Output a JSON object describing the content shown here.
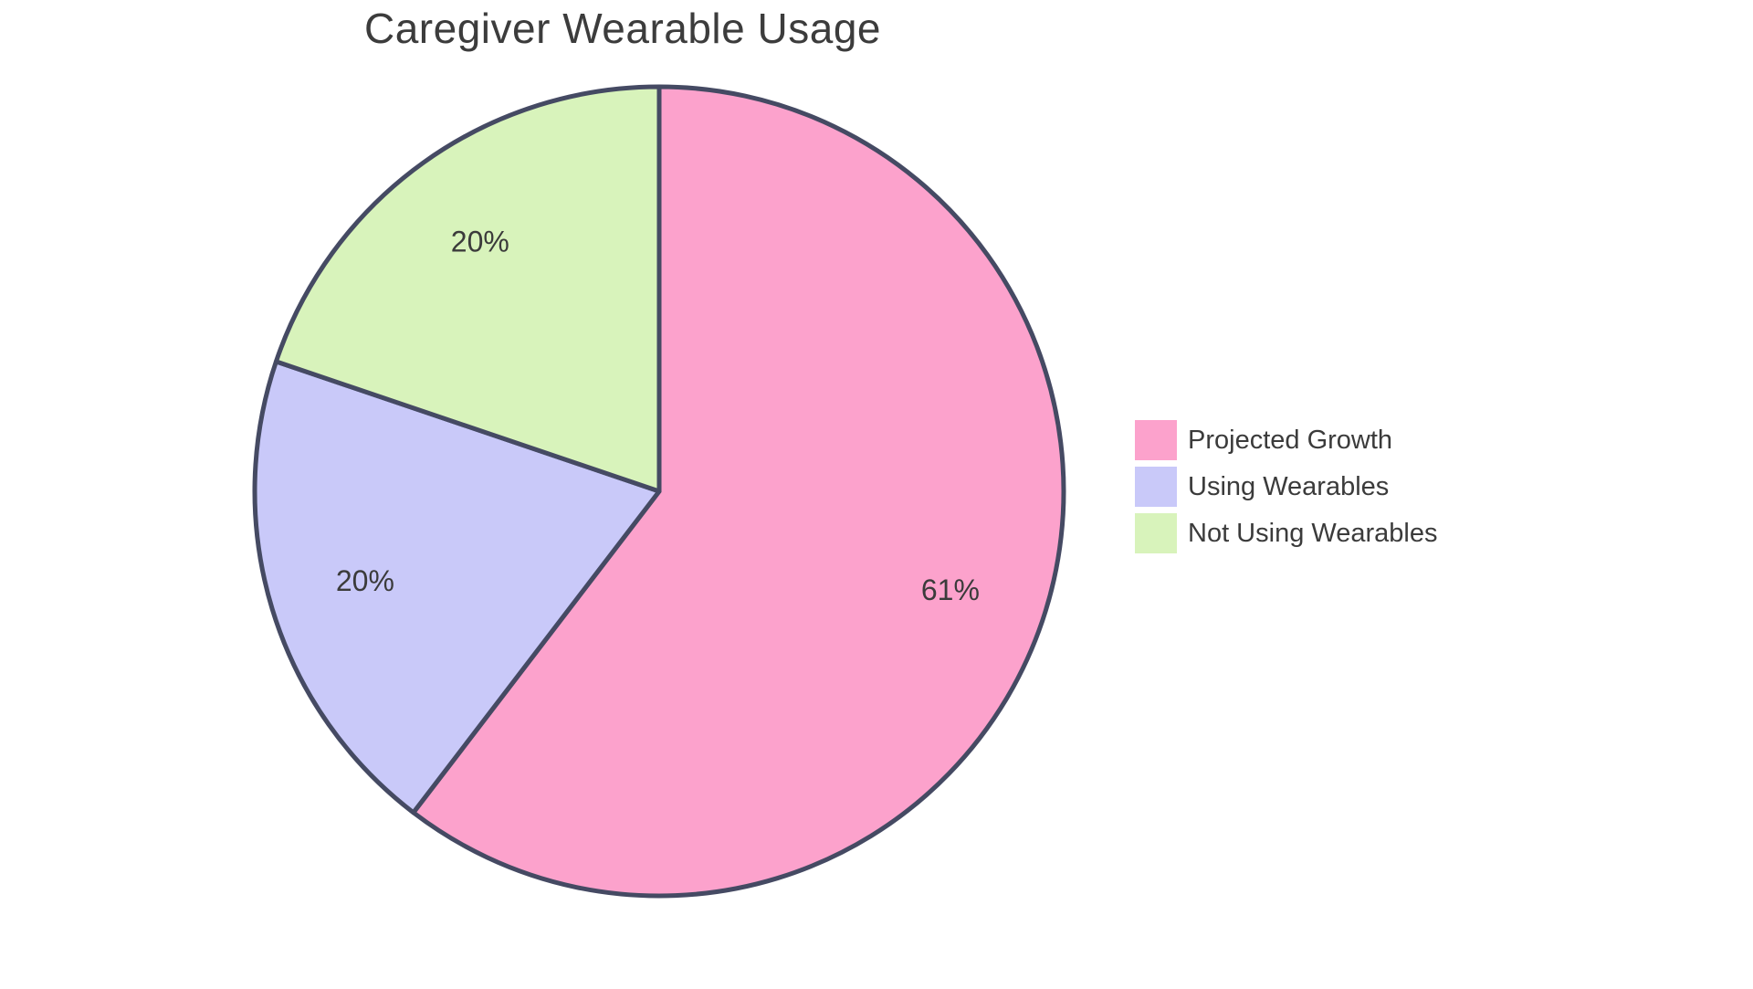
{
  "page": {
    "background_color": "#ffffff",
    "text_color": "#3b3b3b"
  },
  "chart_data": {
    "type": "pie",
    "title": "Caregiver Wearable Usage",
    "start_angle": "12 o'clock",
    "direction": "clockwise",
    "legend_position": "right",
    "outline_color": "#454a63",
    "label_color": "#3b3b3b",
    "segments": [
      {
        "label": "Projected Growth",
        "value": 61,
        "display_pct": "61%",
        "color": "#fca2cc"
      },
      {
        "label": "Using Wearables",
        "value": 20,
        "display_pct": "20%",
        "color": "#c9c9f9"
      },
      {
        "label": "Not Using Wearables",
        "value": 20,
        "display_pct": "20%",
        "color": "#d8f3bb"
      }
    ]
  }
}
